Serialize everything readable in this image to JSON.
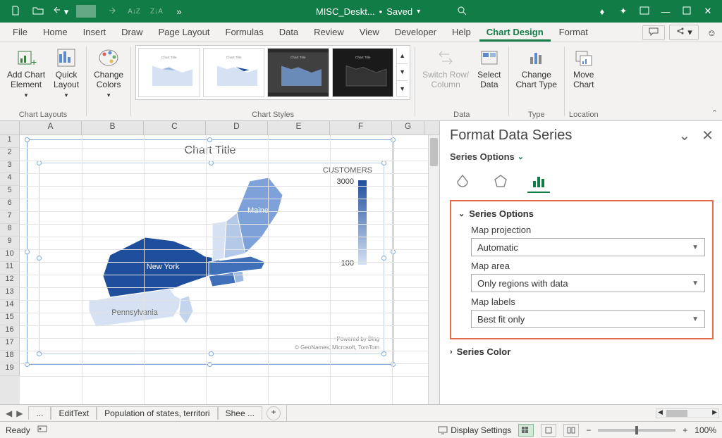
{
  "titlebar": {
    "doc_name": "MISC_Deskt...",
    "save_status": "Saved"
  },
  "tabs": {
    "items": [
      "File",
      "Home",
      "Insert",
      "Draw",
      "Page Layout",
      "Formulas",
      "Data",
      "Review",
      "View",
      "Developer",
      "Help",
      "Chart Design",
      "Format"
    ],
    "active": "Chart Design"
  },
  "ribbon": {
    "groups": {
      "chart_layouts": {
        "label": "Chart Layouts",
        "add_chart_element": "Add Chart\nElement",
        "quick_layout": "Quick\nLayout"
      },
      "change_colors": {
        "label": "Change\nColors"
      },
      "chart_styles": {
        "label": "Chart Styles"
      },
      "data": {
        "label": "Data",
        "switch": "Switch Row/\nColumn",
        "select": "Select\nData"
      },
      "type": {
        "label": "Type",
        "change_type": "Change\nChart Type"
      },
      "location": {
        "label": "Location",
        "move": "Move\nChart"
      }
    }
  },
  "columns": [
    "A",
    "B",
    "C",
    "D",
    "E",
    "F",
    "G"
  ],
  "rows": 19,
  "chart": {
    "title": "Chart Title",
    "legend_title": "CUSTOMERS",
    "legend_max": "3000",
    "legend_min": "100",
    "attrib1": "Powered by Bing",
    "attrib2": "© GeoNames, Microsoft, TomTom",
    "states": {
      "ny": {
        "label": "New York",
        "color": "#1f4e9c"
      },
      "pa": {
        "label": "Pennsylvania",
        "color": "#d6e2f3"
      },
      "me": {
        "label": "Maine",
        "color": "#7da1d8"
      },
      "vt": {
        "color": "#d6e2f3"
      },
      "nh": {
        "color": "#b4c9e8"
      },
      "ma": {
        "color": "#3f6fb8"
      },
      "ct": {
        "color": "#3f6fb8"
      },
      "ri": {
        "color": "#9bb8e0"
      },
      "nj": {
        "color": "#c2d4ee"
      }
    }
  },
  "format_pane": {
    "title": "Format Data Series",
    "subtitle": "Series Options",
    "section_header": "Series Options",
    "map_projection": {
      "label": "Map projection",
      "value": "Automatic"
    },
    "map_area": {
      "label": "Map area",
      "value": "Only regions with data"
    },
    "map_labels": {
      "label": "Map labels",
      "value": "Best fit only"
    },
    "series_color": "Series Color"
  },
  "sheet_tabs": {
    "ellipsis": "...",
    "tabs": [
      "EditText",
      "Population of states, territori",
      "Shee ..."
    ]
  },
  "status": {
    "ready": "Ready",
    "display_settings": "Display Settings",
    "zoom": "100%"
  }
}
